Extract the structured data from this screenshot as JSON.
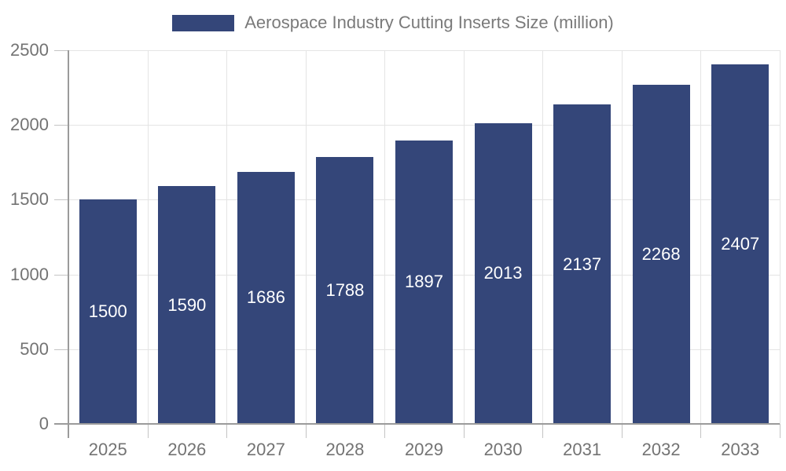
{
  "legend": {
    "label": "Aerospace Industry Cutting Inserts Size (million)"
  },
  "chart_data": {
    "type": "bar",
    "title": "Aerospace Industry Cutting Inserts Size (million)",
    "categories": [
      "2025",
      "2026",
      "2027",
      "2028",
      "2029",
      "2030",
      "2031",
      "2032",
      "2033"
    ],
    "values": [
      1500,
      1590,
      1686,
      1788,
      1897,
      2013,
      2137,
      2268,
      2407
    ],
    "xlabel": "",
    "ylabel": "",
    "ylim": [
      0,
      2500
    ],
    "yticks": [
      0,
      500,
      1000,
      1500,
      2000,
      2500
    ],
    "grid": "horizontal-and-vertical",
    "legend_position": "top-center",
    "bar_label_position": "inside-center",
    "colors": {
      "bar": "#344679",
      "axis": "#9b9b9b",
      "grid": "#e4e4e4",
      "tick": "#c4c4c4",
      "axis_label": "#737373",
      "legend_label": "#7a7a7a",
      "bar_label": "#ffffff",
      "background": "#ffffff"
    }
  }
}
